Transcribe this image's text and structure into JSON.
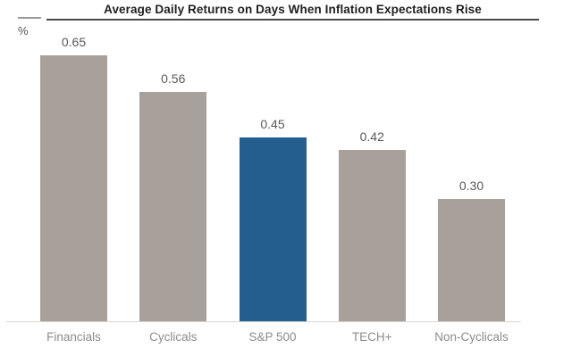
{
  "header": {
    "unit_label": "%"
  },
  "colors": {
    "bar_default": "#a8a09a",
    "bar_highlight": "#245e8e",
    "axis_line": "#d9d7d5",
    "title_rule": "#4a4a4a",
    "value_label": "#595959",
    "category_label": "#8c8c8c",
    "title_text": "#1f1f1f"
  },
  "chart_data": {
    "type": "bar",
    "title": "Average Daily Returns on Days When Inflation Expectations Rise",
    "ylabel": "%",
    "xlabel": "",
    "categories": [
      "Financials",
      "Cyclicals",
      "S&P 500",
      "TECH+",
      "Non-Cyclicals"
    ],
    "values": [
      0.65,
      0.56,
      0.45,
      0.42,
      0.3
    ],
    "value_labels": [
      "0.65",
      "0.56",
      "0.45",
      "0.42",
      "0.30"
    ],
    "highlight_index": 2,
    "highlight_category": "S&P 500",
    "ylim": [
      0,
      0.7
    ],
    "grid": false,
    "legend": null,
    "axis_ticks_visible": false
  }
}
